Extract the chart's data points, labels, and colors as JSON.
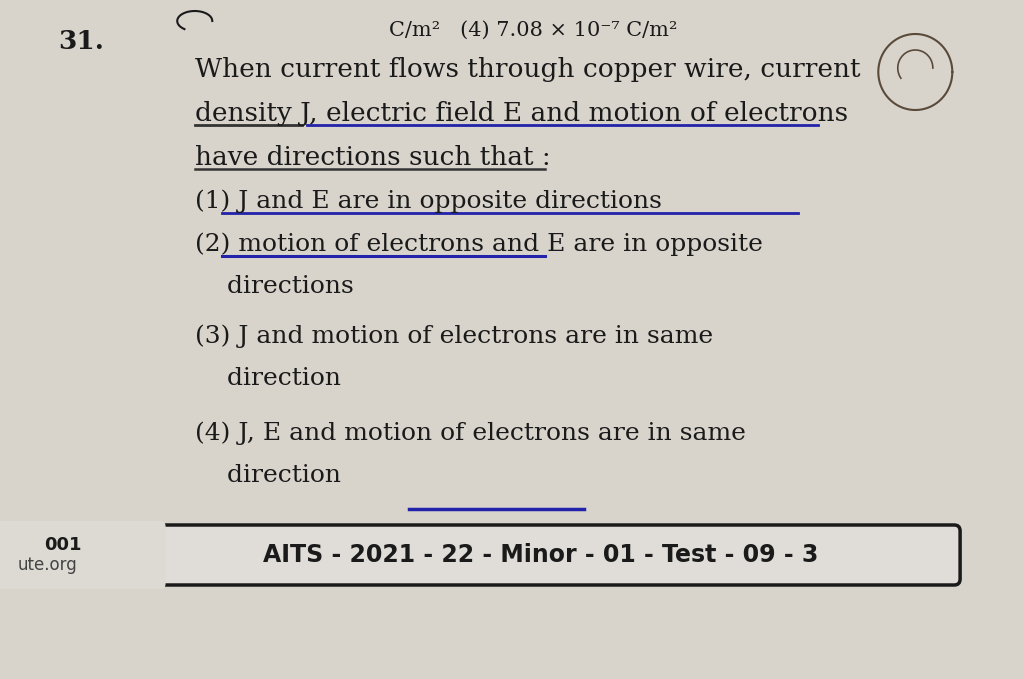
{
  "bg_color": "#d8d4cc",
  "paper_color": "#e8e6e0",
  "question_number": "31.",
  "top_text": "C/m    (4) 7.08 × 10⁻⁷ C/m²",
  "q_line1": "When current flows through copper wire, current",
  "q_line2": "density J, electric field E and motion of electrons",
  "q_line3": "have directions such that :",
  "opt1": "(1) J and E are in opposite directions",
  "opt2_a": "(2) motion of electrons and E are in opposite",
  "opt2_b": "    directions",
  "opt3_a": "(3) J and motion of electrons are in same",
  "opt3_b": "    direction",
  "opt4_a": "(4) J, E and motion of electrons are in same",
  "opt4_b": "    direction",
  "footer_left_top": "001",
  "footer_left_bottom": "ute.org",
  "footer_right": "AITS - 2021 - 22 - Minor - 01 - Test - 09 - 3",
  "footer_outline": "#1a1a1a",
  "footer_text_color": "#1a1a1a",
  "main_text_color": "#1a1a1a",
  "underline_color_dark": "#333333",
  "underline_color_blue": "#2222aa",
  "font_size_q": 19,
  "font_size_opts": 18,
  "font_size_footer": 17,
  "font_size_header": 15
}
